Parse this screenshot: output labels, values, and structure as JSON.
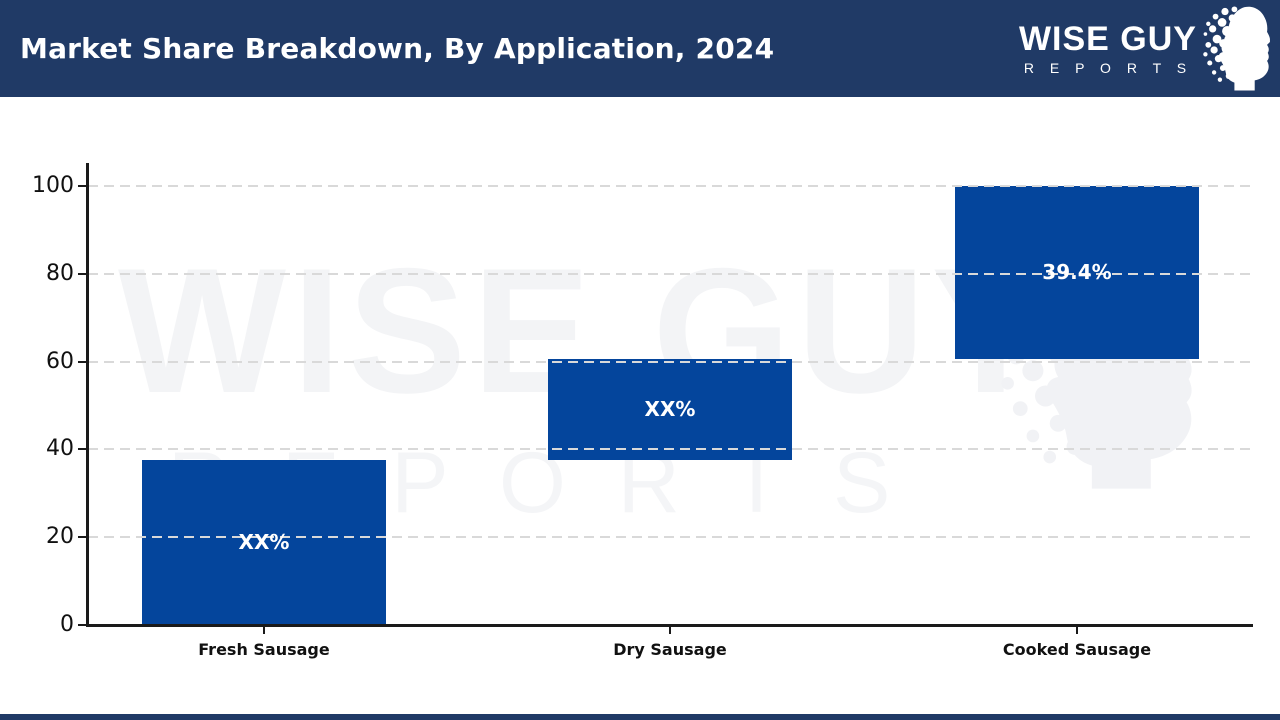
{
  "header": {
    "title": "Market Share Breakdown, By Application, 2024",
    "background_color": "#203a66",
    "logo": {
      "line1": "WISE GUY",
      "line2": "R E P O R T S"
    }
  },
  "watermark": {
    "line1": "WISE GUY",
    "line2": "R E P O R T S"
  },
  "chart_data": {
    "type": "bar",
    "subtype": "floating-waterfall",
    "title": "Market Share Breakdown, By Application, 2024",
    "categories": [
      "Fresh Sausage",
      "Dry Sausage",
      "Cooked Sausage"
    ],
    "segments": [
      {
        "category": "Fresh Sausage",
        "start": 0,
        "end": 37.6,
        "label": "XX%"
      },
      {
        "category": "Dry Sausage",
        "start": 37.6,
        "end": 60.6,
        "label": "XX%"
      },
      {
        "category": "Cooked Sausage",
        "start": 60.6,
        "end": 100,
        "label": "39.4%"
      }
    ],
    "xlabel": "",
    "ylabel": "",
    "yticks": [
      0,
      20,
      40,
      60,
      80,
      100
    ],
    "ylim": [
      0,
      105
    ],
    "grid": "horizontal-dashed-over-bars",
    "legend": "none",
    "bar_color": "#04459c",
    "value_label_color": "#ffffff",
    "axis_color": "#1a1a1a",
    "gridline_color": "#d9d9d9"
  }
}
